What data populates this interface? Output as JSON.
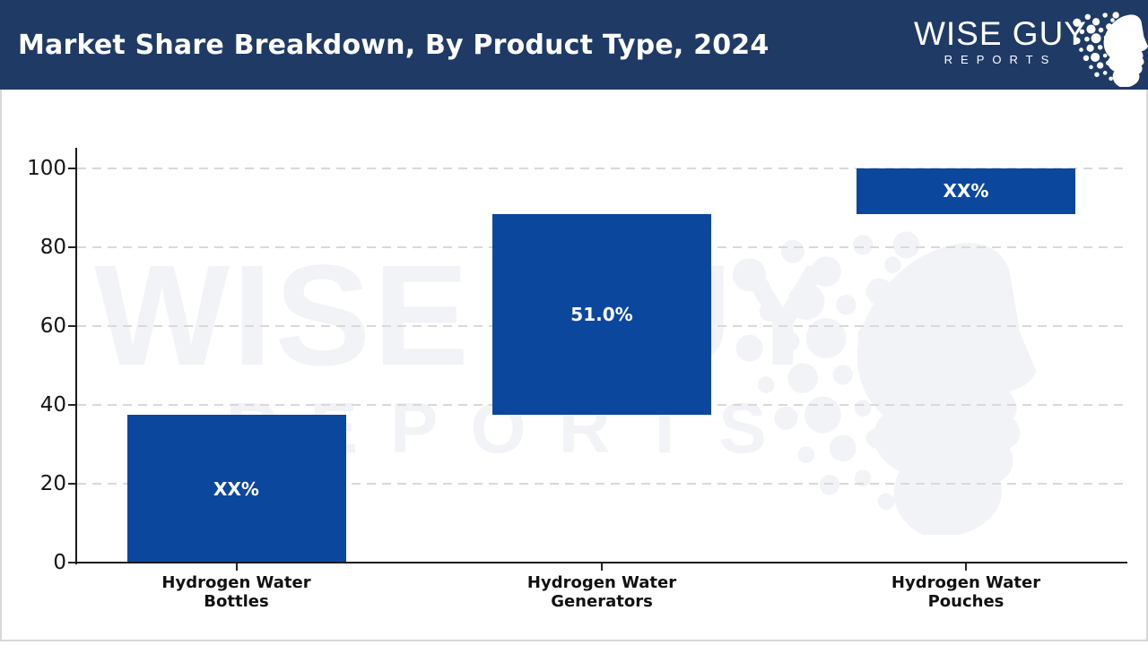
{
  "header": {
    "title": "Market Share Breakdown, By Product Type, 2024",
    "logo": {
      "wordmark": "WISE GUY",
      "subtext": "REPORTS"
    }
  },
  "watermark": {
    "wordmark": "WISE GUY",
    "subtext": "REPORTS"
  },
  "chart_data": {
    "type": "bar",
    "subtype": "stacked-waterfall",
    "title": "Market Share Breakdown, By Product Type, 2024",
    "categories": [
      "Hydrogen Water Bottles",
      "Hydrogen Water Generators",
      "Hydrogen Water Pouches"
    ],
    "categories_display": [
      "Hydrogen Water\nBottles",
      "Hydrogen Water\nGenerators",
      "Hydrogen Water\nPouches"
    ],
    "series": [
      {
        "name": "Hydrogen Water Bottles",
        "start": 0,
        "end": 37.5,
        "value": 37.5,
        "label": "XX%"
      },
      {
        "name": "Hydrogen Water Generators",
        "start": 37.5,
        "end": 88.5,
        "value": 51.0,
        "label": "51.0%"
      },
      {
        "name": "Hydrogen Water Pouches",
        "start": 88.5,
        "end": 100,
        "value": 11.5,
        "label": "XX%"
      }
    ],
    "xlabel": "",
    "ylabel": "",
    "y_ticks": [
      0,
      20,
      40,
      60,
      80,
      100
    ],
    "ylim": [
      0,
      104
    ],
    "grid": "horizontal-dashed",
    "legend_position": "none",
    "colors": {
      "bar": "#0c479e",
      "bar_label": "#ffffff",
      "header_bg": "#203a66",
      "grid": "#d9d9d9",
      "axis": "#1a1a1a",
      "watermark": "#f2f3f6"
    }
  }
}
